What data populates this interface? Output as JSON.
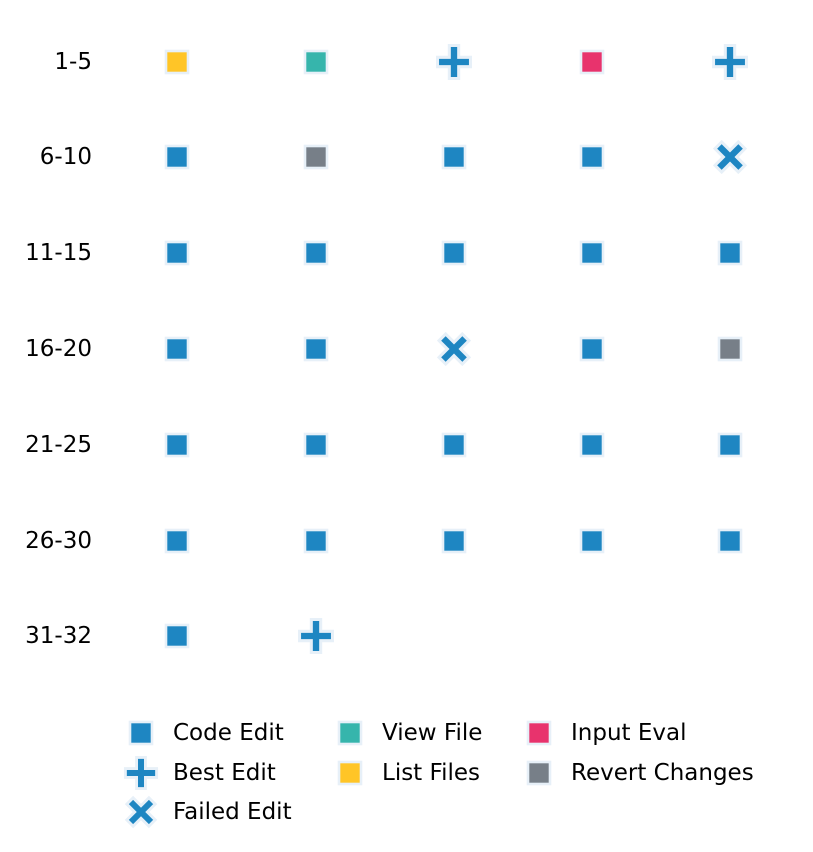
{
  "colors": {
    "blue": "#1e86c2",
    "teal": "#36b5ac",
    "yellow": "#ffc527",
    "pink": "#e8336d",
    "gray": "#777f88",
    "marker_edge": "#e7f0f8",
    "text": "#000000",
    "background": "#ffffff"
  },
  "chart_data": {
    "type": "scatter",
    "subtype": "categorical-marker-grid",
    "title": "",
    "xlabel": "",
    "ylabel": "",
    "grid": false,
    "marker_types": {
      "code_edit": {
        "shape": "square",
        "color": "blue"
      },
      "view_file": {
        "shape": "square",
        "color": "teal"
      },
      "input_eval": {
        "shape": "square",
        "color": "pink"
      },
      "list_files": {
        "shape": "square",
        "color": "yellow"
      },
      "revert_changes": {
        "shape": "square",
        "color": "gray"
      },
      "best_edit": {
        "shape": "plus",
        "color": "blue"
      },
      "failed_edit": {
        "shape": "x",
        "color": "blue"
      }
    },
    "rows": [
      {
        "label": "1-5",
        "markers": [
          "list_files",
          "view_file",
          "best_edit",
          "input_eval",
          "best_edit"
        ]
      },
      {
        "label": "6-10",
        "markers": [
          "code_edit",
          "revert_changes",
          "code_edit",
          "code_edit",
          "failed_edit"
        ]
      },
      {
        "label": "11-15",
        "markers": [
          "code_edit",
          "code_edit",
          "code_edit",
          "code_edit",
          "code_edit"
        ]
      },
      {
        "label": "16-20",
        "markers": [
          "code_edit",
          "code_edit",
          "failed_edit",
          "code_edit",
          "revert_changes"
        ]
      },
      {
        "label": "21-25",
        "markers": [
          "code_edit",
          "code_edit",
          "code_edit",
          "code_edit",
          "code_edit"
        ]
      },
      {
        "label": "26-30",
        "markers": [
          "code_edit",
          "code_edit",
          "code_edit",
          "code_edit",
          "code_edit"
        ]
      },
      {
        "label": "31-32",
        "markers": [
          "code_edit",
          "best_edit"
        ]
      }
    ],
    "legend": {
      "position": "bottom",
      "columns": 3,
      "entries": [
        {
          "id": "code-edit",
          "label": "Code Edit",
          "shape": "square",
          "color": "blue"
        },
        {
          "id": "view-file",
          "label": "View File",
          "shape": "square",
          "color": "teal"
        },
        {
          "id": "input-eval",
          "label": "Input Eval",
          "shape": "square",
          "color": "pink"
        },
        {
          "id": "best-edit",
          "label": "Best Edit",
          "shape": "plus",
          "color": "blue"
        },
        {
          "id": "list-files",
          "label": "List Files",
          "shape": "square",
          "color": "yellow"
        },
        {
          "id": "revert-changes",
          "label": "Revert Changes",
          "shape": "square",
          "color": "gray"
        },
        {
          "id": "failed-edit",
          "label": "Failed Edit",
          "shape": "x",
          "color": "blue"
        }
      ]
    }
  }
}
